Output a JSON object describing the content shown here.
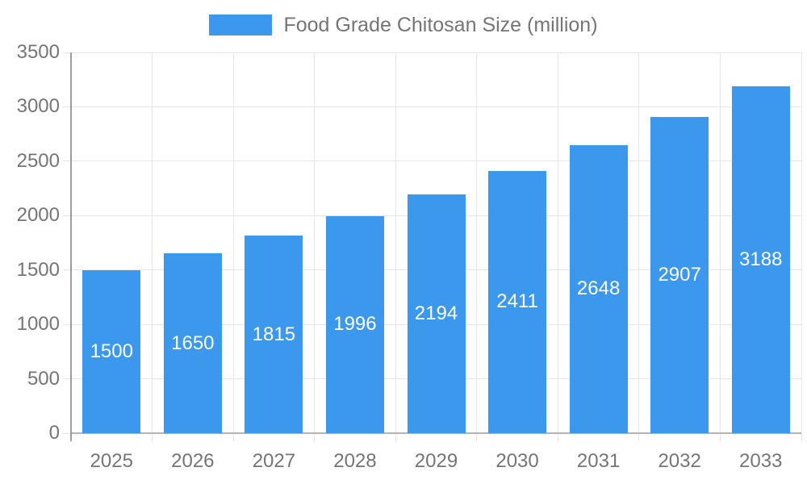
{
  "legend": {
    "label": "Food Grade Chitosan Size (million)"
  },
  "chart_data": {
    "type": "bar",
    "title": "Food Grade Chitosan Size (million)",
    "series_name": "Food Grade Chitosan Size (million)",
    "categories": [
      "2025",
      "2026",
      "2027",
      "2028",
      "2029",
      "2030",
      "2031",
      "2032",
      "2033"
    ],
    "values": [
      1500,
      1650,
      1815,
      1996,
      2194,
      2411,
      2648,
      2907,
      3188
    ],
    "bar_labels": [
      1500,
      1650,
      1815,
      1996,
      2194,
      2411,
      2648,
      2907,
      3188
    ],
    "xlabel": "",
    "ylabel": "",
    "ylim": [
      0,
      3500
    ],
    "yticks": [
      0,
      500,
      1000,
      1500,
      2000,
      2500,
      3000,
      3500
    ],
    "grid": true,
    "legend_position": "top",
    "colors": {
      "bar": "#3b98ec",
      "bar_label_text": "#ffffff",
      "axis_text": "#757575",
      "gridline": "#e6e6e6",
      "axis_line": "#9e9e9e",
      "baseline": "#b3b3b3",
      "background": "#ffffff"
    }
  }
}
